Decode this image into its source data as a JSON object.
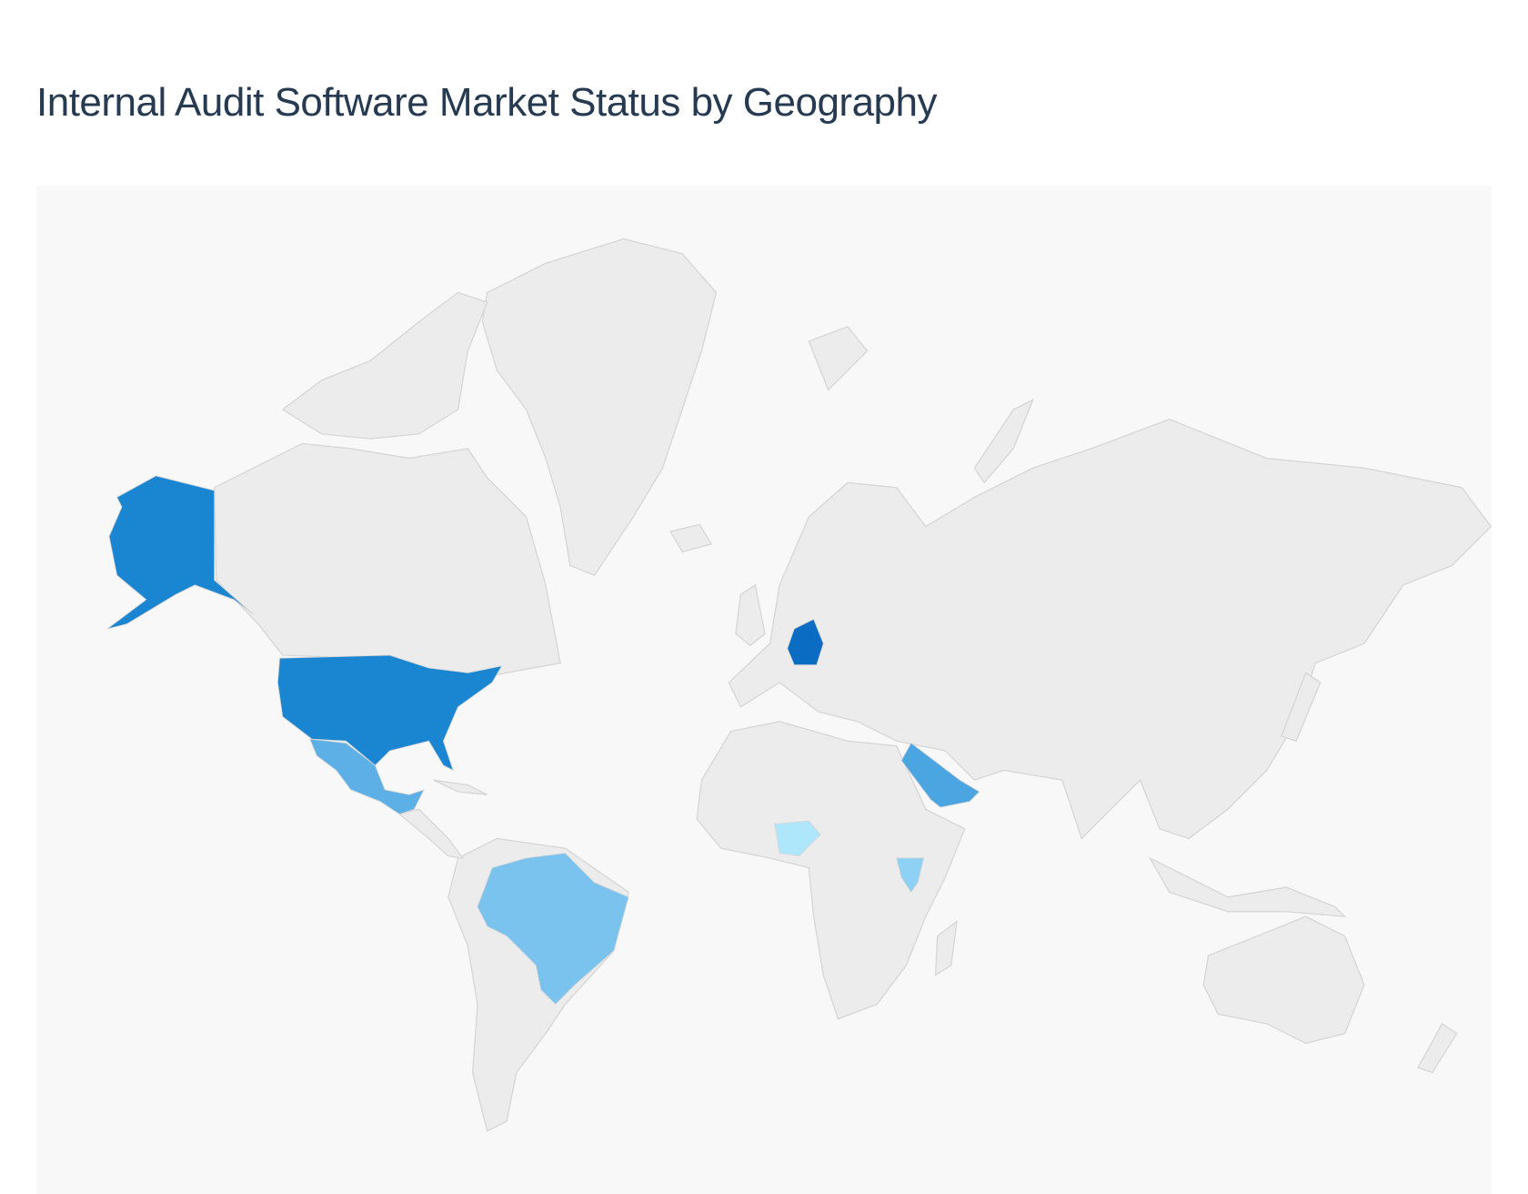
{
  "title": "Internal Audit Software Market Status by Geography",
  "map": {
    "land_color": "#ececec",
    "border_color": "#d6d6d6",
    "background_color": "#f8f8f8",
    "highlight_colors": {
      "USA": "#1a86d2",
      "DEU": "#0a6cc2",
      "SAU": "#4aa5e0",
      "MEX": "#5db0e6",
      "BRA": "#79c3ee",
      "KEN": "#8fd0f5",
      "NGA": "#aee6fb"
    }
  }
}
